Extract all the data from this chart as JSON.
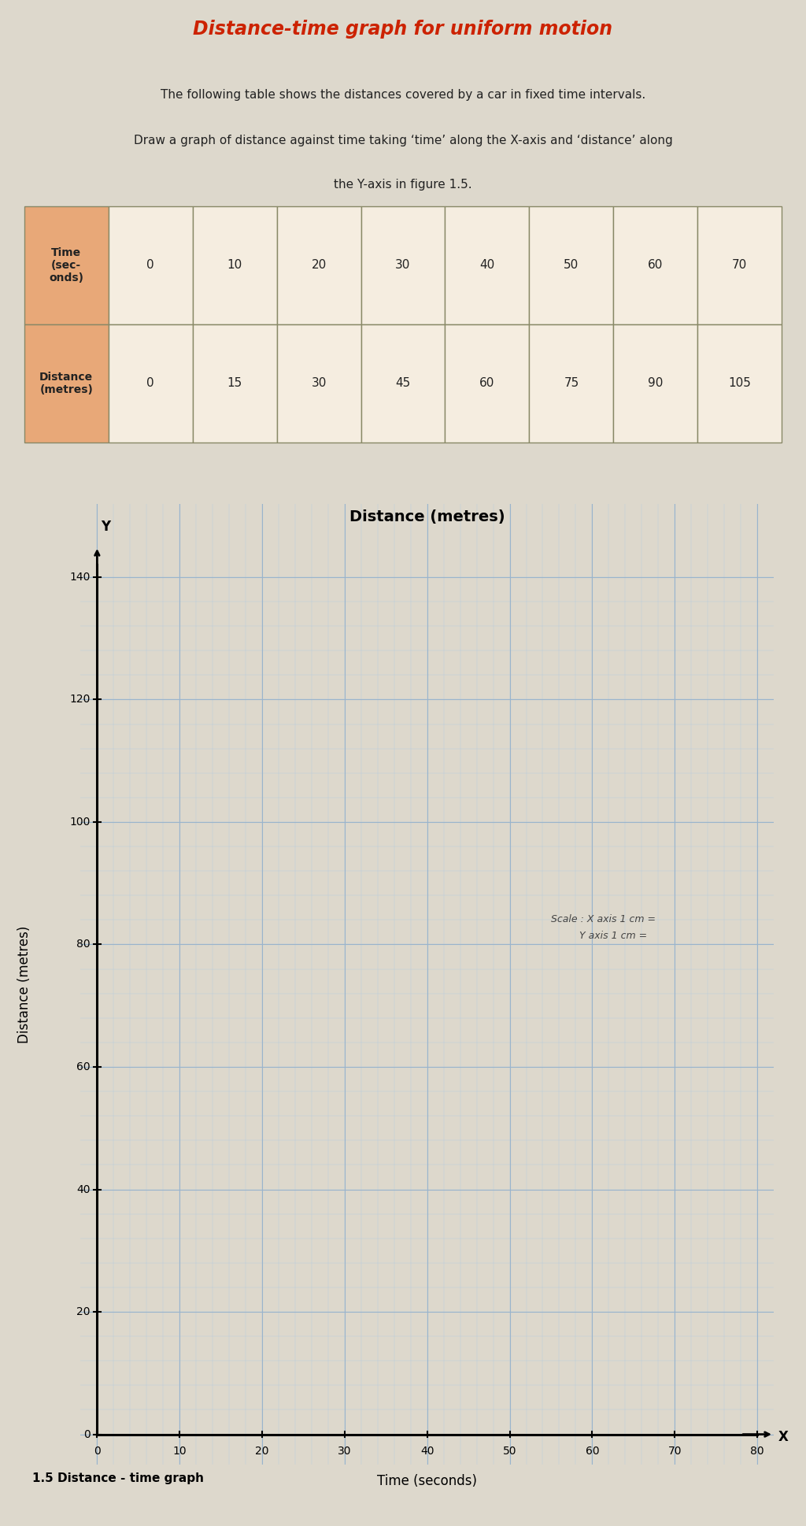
{
  "title": "Distance-time graph for uniform motion",
  "graph_label": "1.5 Distance - time graph",
  "x_axis_label": "Time (seconds)",
  "y_axis_label": "Distance (metres)",
  "graph_top_label": "Distance (metres)",
  "scale_text_line1": "Scale : X axis 1 cm =",
  "scale_text_line2": "         Y axis 1 cm =",
  "description_line1": "The following table shows the distances covered by a car in fixed time intervals.",
  "description_line2": "Draw a graph of distance against time taking ‘time’ along the X-axis and ‘distance’ along",
  "description_line3": "the Y-axis in figure 1.5.",
  "x_ticks": [
    0,
    10,
    20,
    30,
    40,
    50,
    60,
    70,
    80
  ],
  "y_ticks": [
    0,
    20,
    40,
    60,
    80,
    100,
    120,
    140
  ],
  "x_max": 80,
  "y_max": 140,
  "table_time": [
    0,
    10,
    20,
    30,
    40,
    50,
    60,
    70
  ],
  "table_distance": [
    0,
    15,
    30,
    45,
    60,
    75,
    90,
    105
  ],
  "table_header_time": "Time\n(sec-\nonds)",
  "table_header_dist": "Distance\n(metres)",
  "background_color": "#ddd8cc",
  "graph_bg": "#e8e4d8",
  "grid_color": "#9ab4cc",
  "grid_fine_color": "#b8ccdd",
  "table_header_bg": "#e8a878",
  "table_row_bg": "#f5ede0",
  "text_color": "#222222",
  "title_color": "#cc2200",
  "axis_color": "#000000",
  "graph_face_color": "#ddd8cc"
}
